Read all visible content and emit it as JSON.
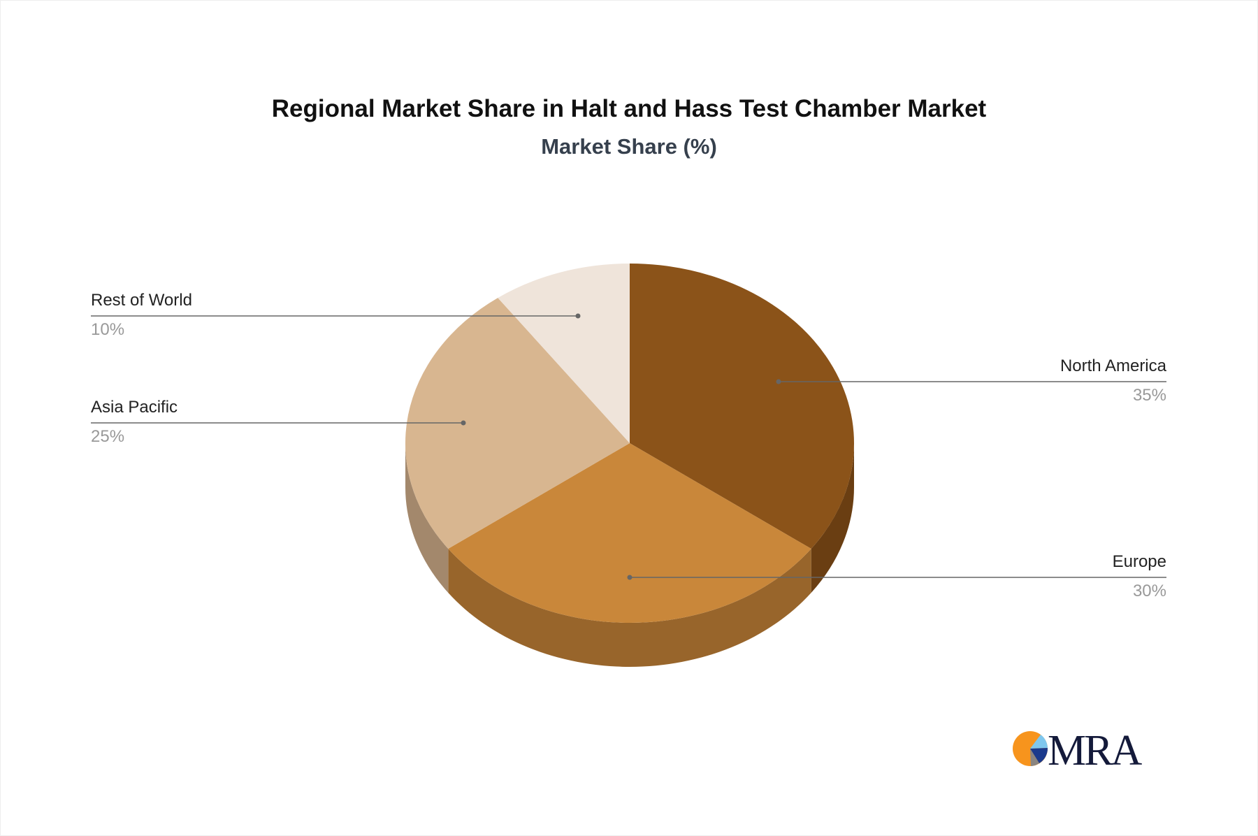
{
  "chart_data": {
    "type": "pie",
    "title": "Regional Market Share in Halt and Hass Test Chamber Market",
    "subtitle": "Market Share (%)",
    "categories": [
      "North America",
      "Europe",
      "Asia Pacific",
      "Rest of World"
    ],
    "values": [
      35,
      30,
      25,
      10
    ],
    "labels": [
      "35%",
      "30%",
      "25%",
      "10%"
    ],
    "colors": [
      "#8B5319",
      "#C9873A",
      "#D8B690",
      "#EFE4DA"
    ],
    "side_colors": [
      "#6A3E12",
      "#98652B",
      "#A3886C",
      "#C9BCB0"
    ],
    "style": "3d"
  },
  "logo": {
    "text": "MRA",
    "colors": [
      "#F7941D",
      "#7FC7EE",
      "#1B3A8C",
      "#8A8580",
      "#141a3a"
    ]
  }
}
